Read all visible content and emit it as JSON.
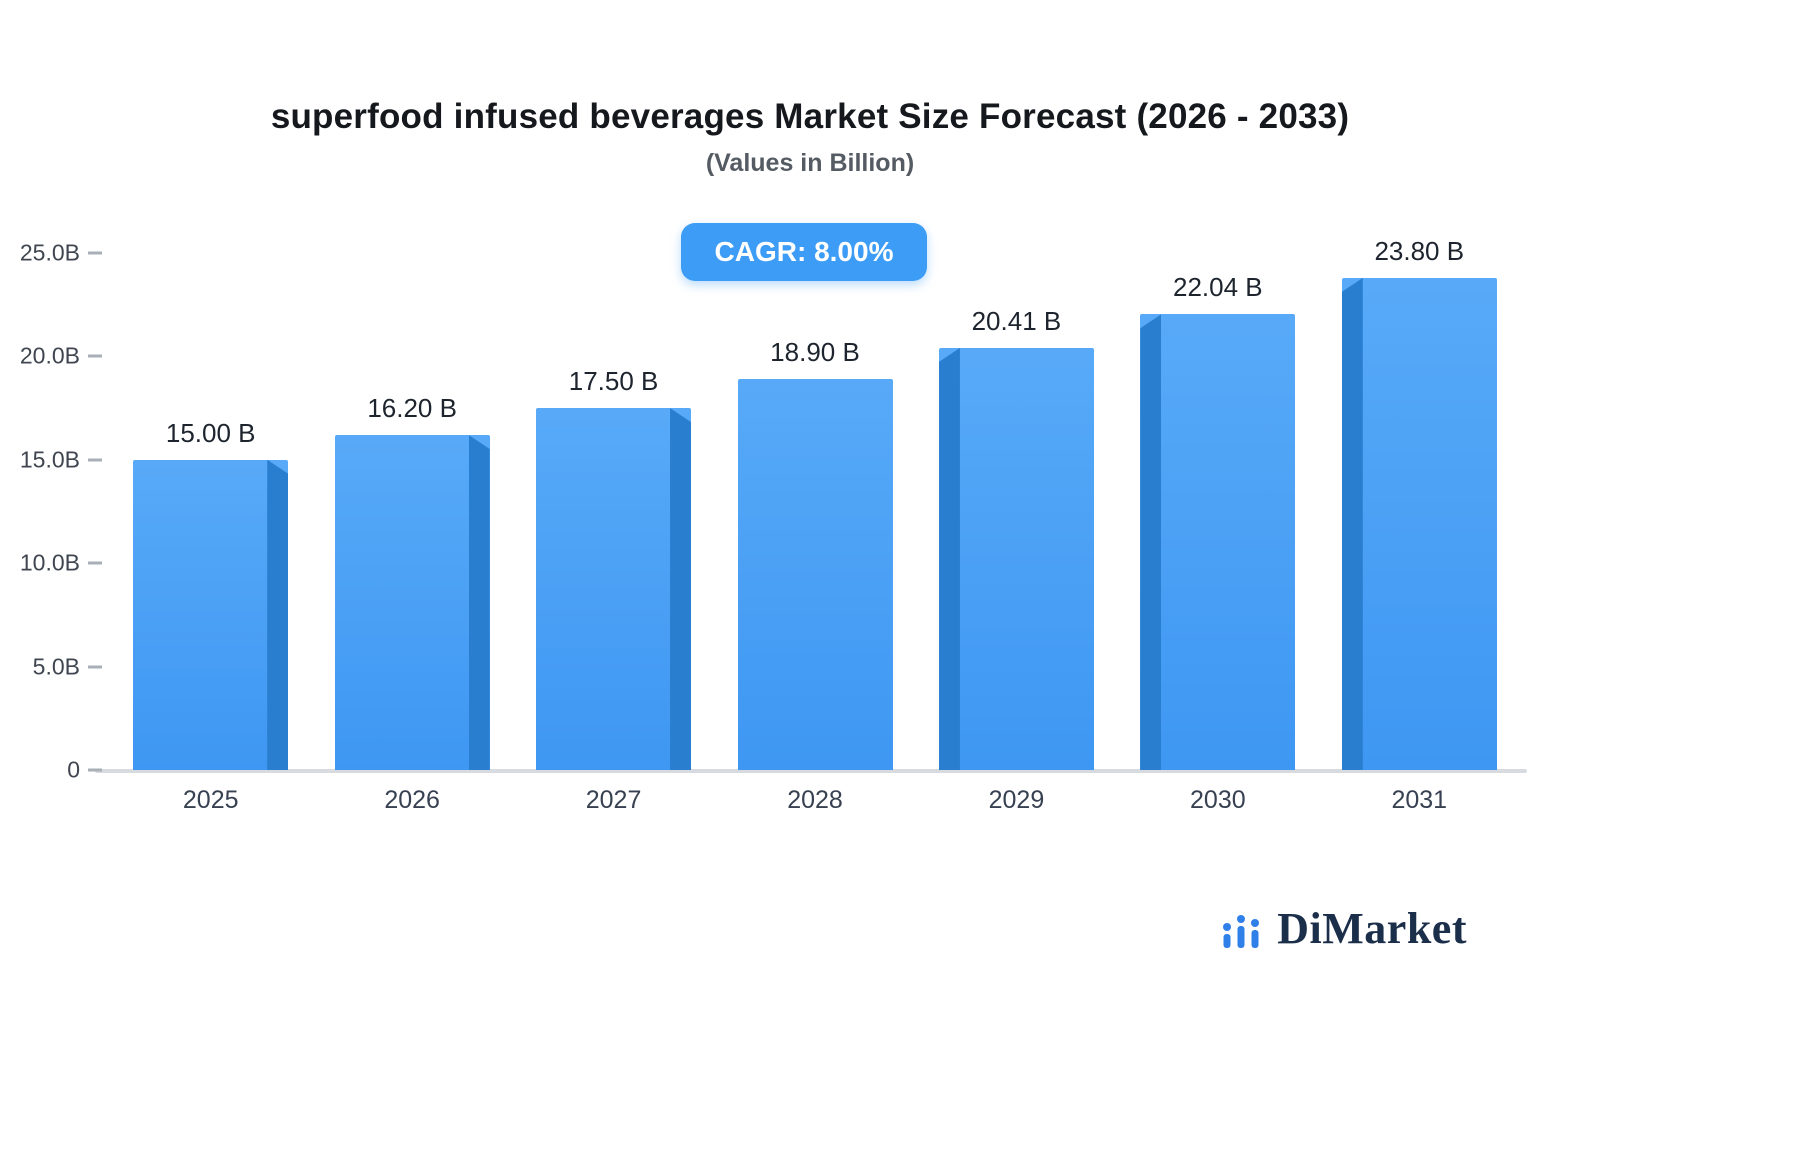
{
  "header": {
    "title": "superfood infused beverages Market Size Forecast (2026 - 2033)",
    "subtitle": "(Values in Billion)"
  },
  "badge": {
    "label": "CAGR: 8.00%"
  },
  "brand": {
    "name": "DiMarket"
  },
  "chart_data": {
    "type": "bar",
    "title": "superfood infused beverages Market Size Forecast (2026 - 2033)",
    "subtitle": "(Values in Billion)",
    "categories": [
      "2025",
      "2026",
      "2027",
      "2028",
      "2029",
      "2030",
      "2031"
    ],
    "values": [
      15.0,
      16.2,
      17.5,
      18.9,
      20.41,
      22.04,
      23.8
    ],
    "value_labels": [
      "15.00 B",
      "16.20 B",
      "17.50 B",
      "18.90 B",
      "20.41 B",
      "22.04 B",
      "23.80 B"
    ],
    "xlabel": "",
    "ylabel": "",
    "ylim": [
      0,
      25
    ],
    "yticks": [
      0,
      5,
      10,
      15,
      20,
      25
    ],
    "ytick_labels": [
      "0",
      "5.0B",
      "10.0B",
      "15.0B",
      "20.0B",
      "25.0B"
    ],
    "grid": false,
    "legend": false,
    "annotation": "CAGR: 8.00%",
    "bar_face_color": "#3E9DF4",
    "bar_side_color": "#2A7ECF"
  }
}
